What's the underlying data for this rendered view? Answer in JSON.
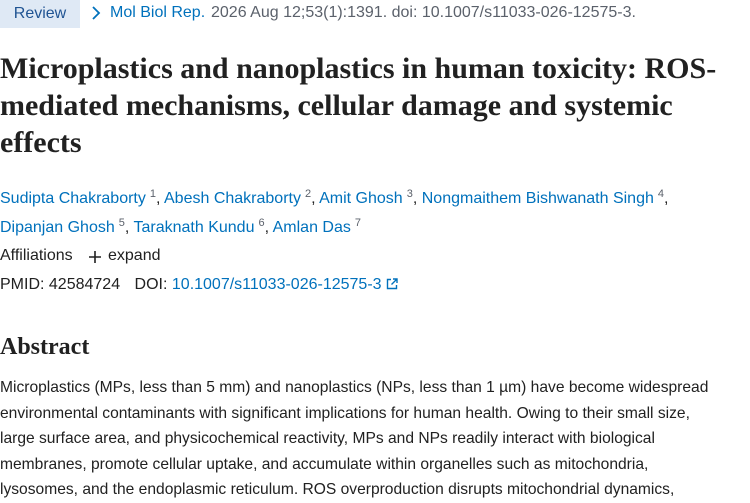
{
  "header": {
    "badge": "Review",
    "journal": "Mol Biol Rep.",
    "citation": "2026 Aug 12;53(1):1391. doi: 10.1007/s11033-026-12575-3."
  },
  "title": "Microplastics and nanoplastics in human toxicity: ROS-mediated mechanisms, cellular damage and systemic effects",
  "authors": [
    {
      "name": "Sudipta Chakraborty",
      "affiliation": "1"
    },
    {
      "name": "Abesh Chakraborty",
      "affiliation": "2"
    },
    {
      "name": "Amit Ghosh",
      "affiliation": "3"
    },
    {
      "name": "Nongmaithem Bishwanath Singh",
      "affiliation": "4"
    },
    {
      "name": "Dipanjan Ghosh",
      "affiliation": "5"
    },
    {
      "name": "Taraknath Kundu",
      "affiliation": "6"
    },
    {
      "name": "Amlan Das",
      "affiliation": "7"
    }
  ],
  "author_separator": ",",
  "affiliations": {
    "label": "Affiliations",
    "toggle": "expand"
  },
  "identifiers": {
    "pmid_label": "PMID:",
    "pmid": "42584724",
    "doi_label": "DOI:",
    "doi": "10.1007/s11033-026-12575-3"
  },
  "abstract": {
    "heading": "Abstract",
    "lines": [
      "Microplastics (MPs, less than 5 mm) and nanoplastics (NPs, less than 1 µm) have become widespread",
      "environmental contaminants with significant implications for human health. Owing to their small size,",
      "large surface area, and physicochemical reactivity, MPs and NPs readily interact with biological",
      "membranes, promote cellular uptake, and accumulate within organelles such as mitochondria,",
      "lysosomes, and the endoplasmic reticulum. ROS overproduction disrupts mitochondrial dynamics,"
    ]
  }
}
